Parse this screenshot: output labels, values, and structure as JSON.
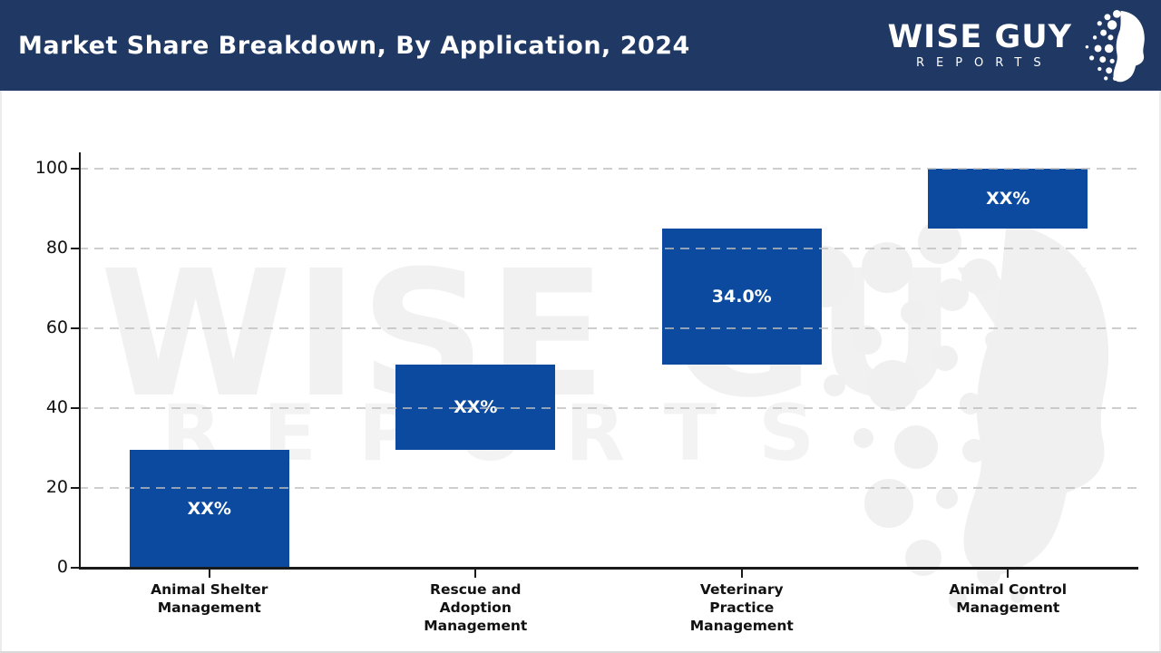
{
  "header": {
    "title": "Market Share Breakdown, By Application, 2024",
    "bg_color": "#1F3864",
    "logo": {
      "line1": "WISE GUY",
      "line2": "REPORTS"
    }
  },
  "watermark": {
    "line1": "WISE GUY",
    "line2": "REPORTS"
  },
  "chart_data": {
    "type": "bar",
    "subtype": "waterfall-floating-bars",
    "title": "Market Share Breakdown, By Application, 2024",
    "categories": [
      "Animal Shelter Management",
      "Rescue and Adoption Management",
      "Veterinary Practice Management",
      "Animal Control Management"
    ],
    "segments": [
      {
        "label_lines": [
          "Animal Shelter",
          "Management"
        ],
        "start": 0,
        "end": 29.5,
        "value": 29.5,
        "value_label": "XX%"
      },
      {
        "label_lines": [
          "Rescue and",
          "Adoption",
          "Management"
        ],
        "start": 29.5,
        "end": 51,
        "value": 21.5,
        "value_label": "XX%"
      },
      {
        "label_lines": [
          "Veterinary",
          "Practice",
          "Management"
        ],
        "start": 51,
        "end": 85,
        "value": 34.0,
        "value_label": "34.0%"
      },
      {
        "label_lines": [
          "Animal Control",
          "Management"
        ],
        "start": 85,
        "end": 100,
        "value": 15.0,
        "value_label": "XX%"
      }
    ],
    "y_ticks": [
      0,
      20,
      40,
      60,
      80,
      100
    ],
    "ylim": [
      0,
      100
    ],
    "xlabel": "",
    "ylabel": "",
    "bar_color": "#0B4A9E",
    "grid": "horizontal-dashed-over-bars",
    "legend": "none"
  }
}
